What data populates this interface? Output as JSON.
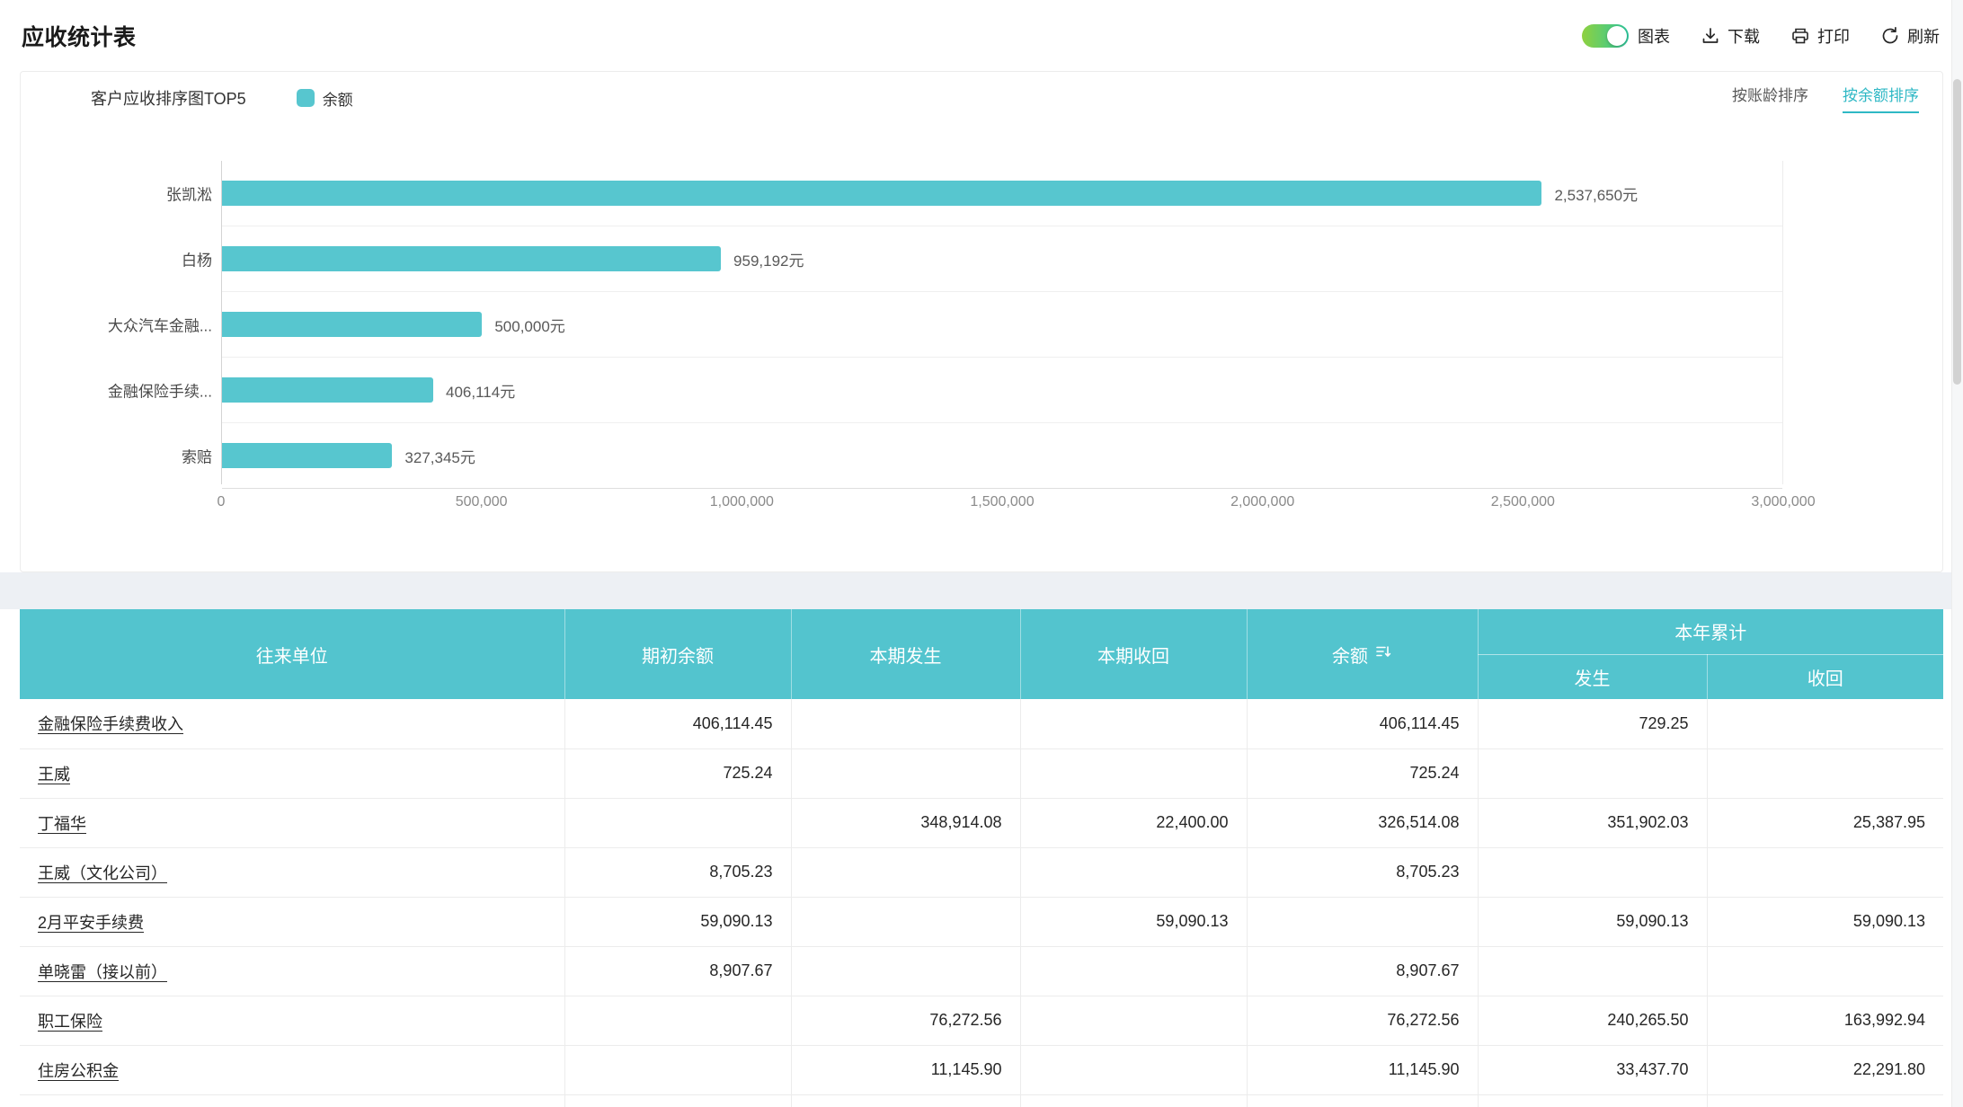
{
  "page": {
    "title": "应收统计表"
  },
  "toolbar": {
    "chart_toggle": {
      "label": "图表",
      "state": "on"
    },
    "download_label": "下载",
    "print_label": "打印",
    "refresh_label": "刷新"
  },
  "chart": {
    "title": "客户应收排序图TOP5",
    "legend_label": "余额",
    "sort_tabs": [
      {
        "label": "按账龄排序",
        "active": false
      },
      {
        "label": "按余额排序",
        "active": true
      }
    ]
  },
  "chart_data": {
    "type": "bar",
    "orientation": "horizontal",
    "title": "客户应收排序图TOP5",
    "legend": [
      "余额"
    ],
    "categories": [
      "张凯淞",
      "白杨",
      "大众汽车金融...",
      "金融保险手续...",
      "索赔"
    ],
    "values": [
      2537650,
      959192,
      500000,
      406114,
      327345
    ],
    "value_labels": [
      "2,537,650元",
      "959,192元",
      "500,000元",
      "406,114元",
      "327,345元"
    ],
    "x_ticks": [
      0,
      500000,
      1000000,
      1500000,
      2000000,
      2500000,
      3000000
    ],
    "x_tick_labels": [
      "0",
      "500,000",
      "1,000,000",
      "1,500,000",
      "2,000,000",
      "2,500,000",
      "3,000,000"
    ],
    "xlim": [
      0,
      3000000
    ],
    "grid": "horizontal-category-lines",
    "legend_position": "top-left",
    "bar_color": "#57C6CF"
  },
  "table": {
    "columns": [
      "往来单位",
      "期初余额",
      "本期发生",
      "本期收回",
      "余额"
    ],
    "year_group": {
      "label": "本年累计",
      "children": [
        "发生",
        "收回"
      ]
    },
    "rows": [
      {
        "name": "金融保险手续费收入",
        "opening": "406,114.45",
        "current_incurred": "",
        "current_received": "",
        "balance": "406,114.45",
        "year_incurred": "729.25",
        "year_received": ""
      },
      {
        "name": "王威",
        "opening": "725.24",
        "current_incurred": "",
        "current_received": "",
        "balance": "725.24",
        "year_incurred": "",
        "year_received": ""
      },
      {
        "name": "丁福华",
        "opening": "",
        "current_incurred": "348,914.08",
        "current_received": "22,400.00",
        "balance": "326,514.08",
        "year_incurred": "351,902.03",
        "year_received": "25,387.95"
      },
      {
        "name": "王威（文化公司）",
        "opening": "8,705.23",
        "current_incurred": "",
        "current_received": "",
        "balance": "8,705.23",
        "year_incurred": "",
        "year_received": ""
      },
      {
        "name": "2月平安手续费",
        "opening": "59,090.13",
        "current_incurred": "",
        "current_received": "59,090.13",
        "balance": "",
        "year_incurred": "59,090.13",
        "year_received": "59,090.13"
      },
      {
        "name": "单晓雷（接以前）",
        "opening": "8,907.67",
        "current_incurred": "",
        "current_received": "",
        "balance": "8,907.67",
        "year_incurred": "",
        "year_received": ""
      },
      {
        "name": "职工保险",
        "opening": "",
        "current_incurred": "76,272.56",
        "current_received": "",
        "balance": "76,272.56",
        "year_incurred": "240,265.50",
        "year_received": "163,992.94"
      },
      {
        "name": "住房公积金",
        "opening": "",
        "current_incurred": "11,145.90",
        "current_received": "",
        "balance": "11,145.90",
        "year_incurred": "33,437.70",
        "year_received": "22,291.80"
      }
    ]
  },
  "icons": {
    "download-icon": "arrow-down-into-tray",
    "print-icon": "printer",
    "refresh-icon": "circular-arrow",
    "sort-icon": "lines-with-down-arrow",
    "chart-toggle": "switch-on"
  },
  "colors": {
    "accent_teal": "#53C4CE",
    "bar_teal": "#57C6CF",
    "active_tab_teal": "#2FB8C5",
    "toggle_green": "#8FD13F",
    "table_border": "#ECECEC",
    "text_primary": "#262626"
  }
}
